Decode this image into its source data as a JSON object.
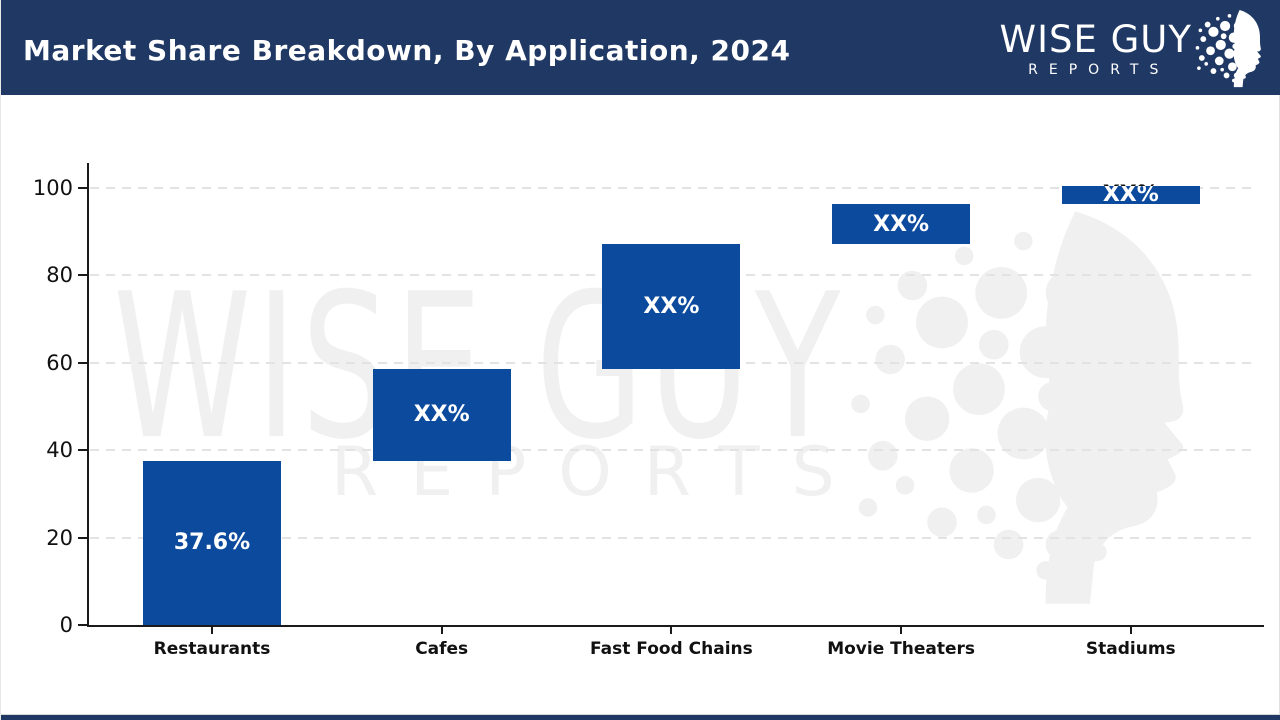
{
  "header": {
    "title": "Market Share Breakdown, By Application, 2024",
    "logo": {
      "line1": "WISE GUY",
      "line2": "REPORTS"
    }
  },
  "watermark": {
    "line1": "WISE GUY",
    "line2": "REPORTS"
  },
  "colors": {
    "header_bg": "#1f3864",
    "footer_bg": "#1f3864",
    "bar": "#0c4a9e",
    "bar_label": "#ffffff",
    "axis": "#1a1a1a",
    "gridline": "#e3e3e3",
    "watermark": "#f0f0f0"
  },
  "chart_data": {
    "type": "bar",
    "subtype": "waterfall",
    "title": "Market Share Breakdown, By Application, 2024",
    "xlabel": "",
    "ylabel": "",
    "categories": [
      "Restaurants",
      "Cafes",
      "Fast Food Chains",
      "Movie Theaters",
      "Stadiums"
    ],
    "segments": [
      {
        "category": "Restaurants",
        "start": 0,
        "end": 37.6,
        "label": "37.6%"
      },
      {
        "category": "Cafes",
        "start": 37.6,
        "end": 58.6,
        "label": "XX%"
      },
      {
        "category": "Fast Food Chains",
        "start": 58.6,
        "end": 87.0,
        "label": "XX%"
      },
      {
        "category": "Movie Theaters",
        "start": 87.0,
        "end": 96.3,
        "label": "XX%"
      },
      {
        "category": "Stadiums",
        "start": 96.3,
        "end": 100.3,
        "label": "XX%"
      }
    ],
    "yticks": [
      0,
      20,
      40,
      60,
      80,
      100
    ],
    "ylim": [
      0,
      105
    ],
    "grid": "dashed-horizontal",
    "legend": "none"
  }
}
